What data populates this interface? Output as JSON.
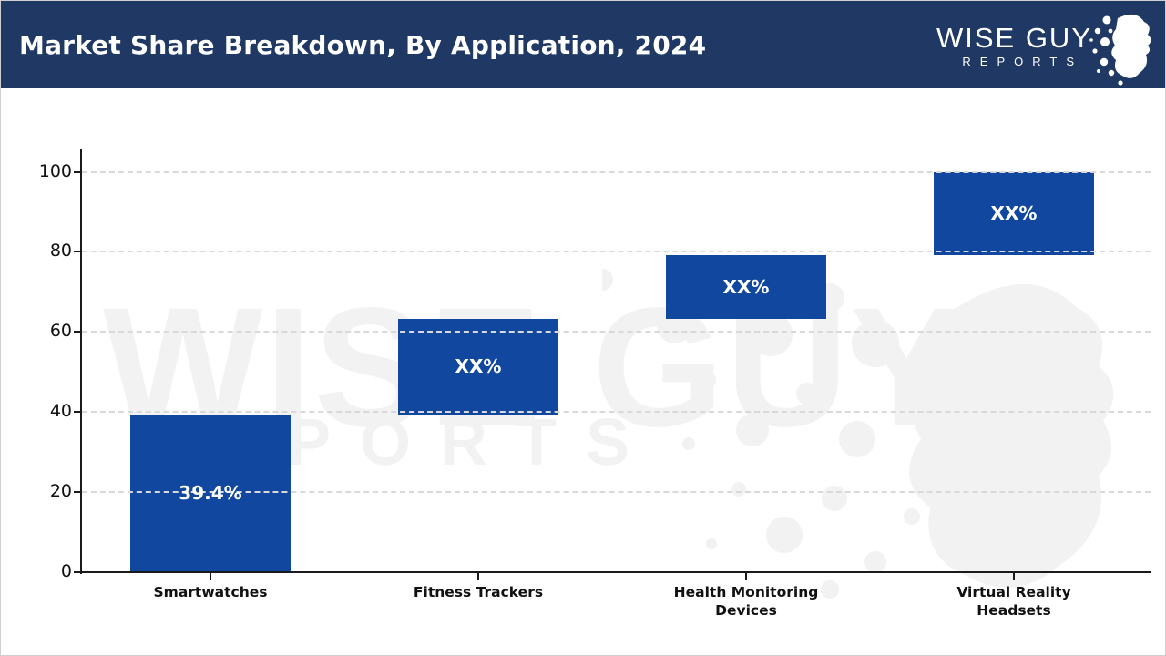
{
  "header": {
    "title": "Market Share Breakdown, By Application, 2024",
    "logo": {
      "line1": "WISE GUY",
      "line2": "REPORTS"
    }
  },
  "watermark": {
    "line1": "WISE GUY",
    "line2": "REPORTS"
  },
  "colors": {
    "header_bg": "#1f3864",
    "bar": "#11479e",
    "grid": "#d9d9d9",
    "axis": "#1a1a1a",
    "bar_label": "#ffffff",
    "watermark": "#f2f2f2"
  },
  "chart_data": {
    "type": "bar",
    "subtype": "waterfall",
    "title": "Market Share Breakdown, By Application, 2024",
    "categories": [
      {
        "label": "Smartwatches",
        "lines": [
          "Smartwatches"
        ]
      },
      {
        "label": "Fitness Trackers",
        "lines": [
          "Fitness Trackers"
        ]
      },
      {
        "label": "Health Monitoring Devices",
        "lines": [
          "Health Monitoring",
          "Devices"
        ]
      },
      {
        "label": "Virtual Reality Headsets",
        "lines": [
          "Virtual Reality",
          "Headsets"
        ]
      }
    ],
    "segments": [
      {
        "category": "Smartwatches",
        "start": 0,
        "end": 39.4,
        "label": "39.4%"
      },
      {
        "category": "Fitness Trackers",
        "start": 39.4,
        "end": 63.3,
        "label": "XX%"
      },
      {
        "category": "Health Monitoring Devices",
        "start": 63.3,
        "end": 79.2,
        "label": "XX%"
      },
      {
        "category": "Virtual Reality Headsets",
        "start": 79.2,
        "end": 100,
        "label": "XX%"
      }
    ],
    "yticks": [
      0,
      20,
      40,
      60,
      80,
      100
    ],
    "ylim": [
      0,
      105
    ],
    "xlabel": "",
    "ylabel": "",
    "legend": "none",
    "grid": "horizontal-dashed"
  }
}
